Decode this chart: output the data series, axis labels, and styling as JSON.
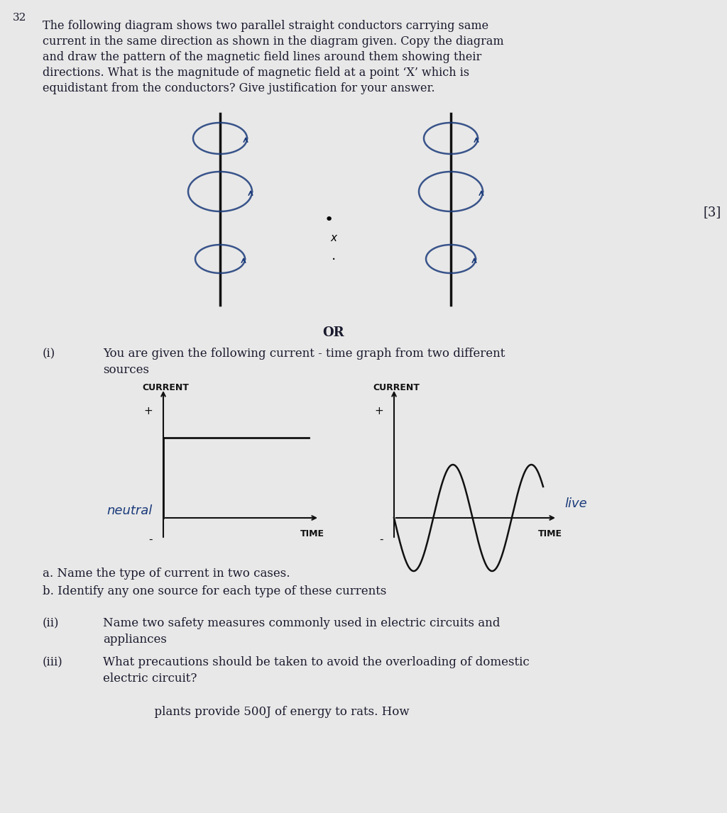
{
  "bg_color": "#e8e8e8",
  "page_number": "32",
  "question_mark": "[3]",
  "main_text": "The following diagram shows two parallel straight conductors carrying same\ncurrent in the same direction as shown in the diagram given. Copy the diagram\nand draw the pattern of the magnetic field lines around them showing their\ndirections. What is the magnitude of magnetic field at a point ‘X’ which is\nequidistant from the conductors? Give justification for your answer.",
  "or_text": "OR",
  "sub_i_text": "(i)     You are given the following current - time graph from two different\n        sources",
  "current_label1": "CURRENT",
  "current_label2": "CURRENT",
  "time_label1": "TIME",
  "time_label2": "TIME",
  "neutral_label": "neutral",
  "live_label": "live",
  "plus1": "+",
  "plus2": "+",
  "minus1": "-",
  "minus2": "-",
  "sub_a_text": "a. Name the type of current in two cases.",
  "sub_b_text": "b. Identify any one source for each type of these currents",
  "sub_ii_text": "(ii)    Name two safety measures commonly used in electric circuits and\n        appliances",
  "sub_iii_text": "(iii)   What precautions should be taken to avoid the overloading of domestic\n        electric circuit?",
  "last_line": "                              plants provide 500J of energy to rats. How",
  "text_color": "#1a1a2e",
  "ink_color": "#1a3a7a",
  "graph_color": "#111111",
  "conductor_color": "#111111"
}
